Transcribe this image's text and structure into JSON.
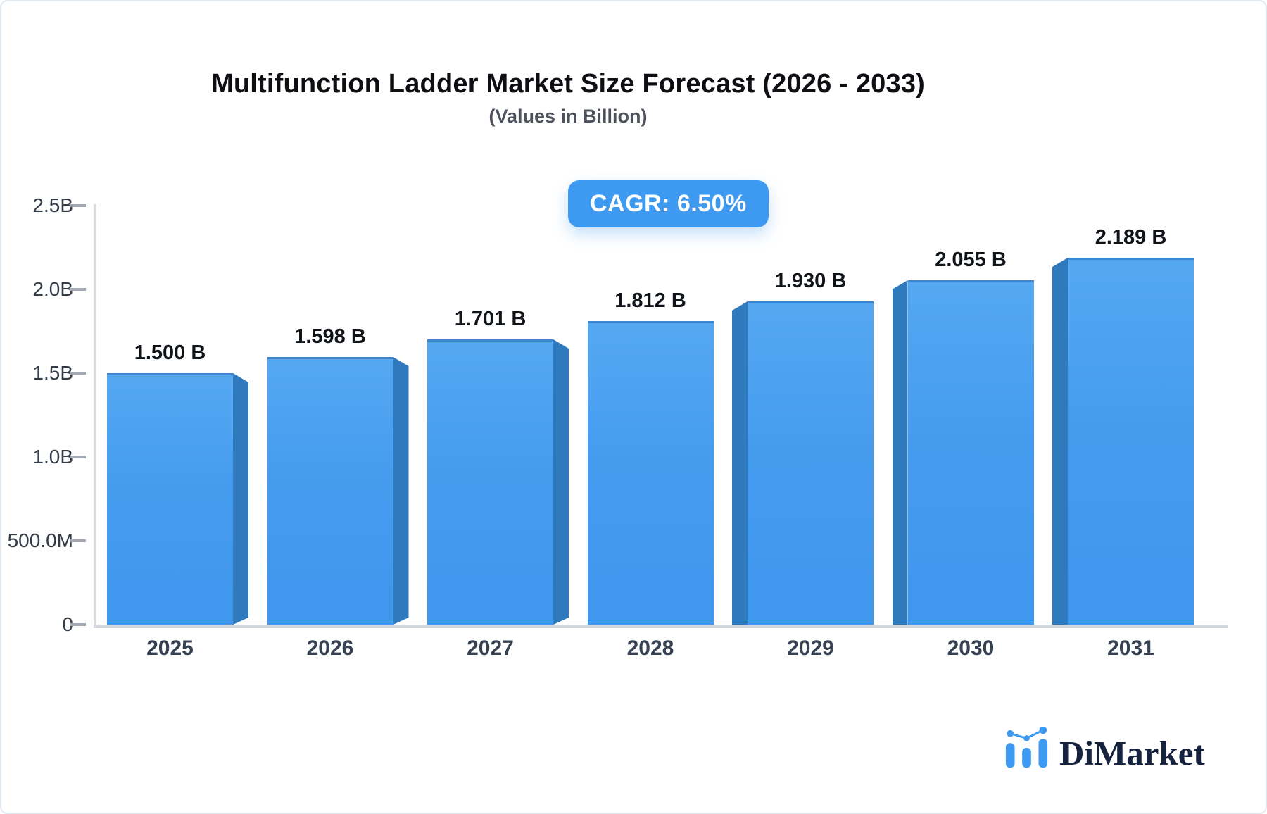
{
  "header": {
    "title": "Multifunction Ladder Market Size Forecast (2026 - 2033)",
    "subtitle": "(Values in Billion)",
    "cagr_label": "CAGR: 6.50%"
  },
  "chart_data": {
    "type": "bar",
    "title": "Multifunction Ladder Market Size Forecast (2026 - 2033)",
    "subtitle": "(Values in Billion)",
    "annotation": "CAGR: 6.50%",
    "categories": [
      "2025",
      "2026",
      "2027",
      "2028",
      "2029",
      "2030",
      "2031"
    ],
    "values": [
      1.5,
      1.598,
      1.701,
      1.812,
      1.93,
      2.055,
      2.189
    ],
    "value_labels": [
      "1.500 B",
      "1.598 B",
      "1.701 B",
      "1.812 B",
      "1.930 B",
      "2.055 B",
      "2.189 B"
    ],
    "unit": "Billion",
    "xlabel": "",
    "ylabel": "",
    "ylim": [
      0,
      2.5
    ],
    "grid": false,
    "legend": "none",
    "y_axis_ticks": [
      {
        "label": "2.5B",
        "value": 2.5
      },
      {
        "label": "2.0B",
        "value": 2.0
      },
      {
        "label": "1.5B",
        "value": 1.5
      },
      {
        "label": "1.0B",
        "value": 1.0
      },
      {
        "label": "500.0M",
        "value": 0.5
      },
      {
        "label": "0",
        "value": 0
      }
    ]
  },
  "footer": {
    "brand_name": "DiMarket",
    "brand_icon": "bar-chart-logo-icon"
  },
  "colors": {
    "bar_face_top": "#55a7f1",
    "bar_face_bottom": "#3f97ee",
    "bar_top_edge": "#3d87d2",
    "bar_bevel": "#2f7abd",
    "badge_bg": "#3e9af0",
    "badge_text": "#ffffff",
    "axis_line": "#d9dcdf",
    "tick_text": "#333c48",
    "category_text": "#364152",
    "title_text": "#0d0f13",
    "subtitle_text": "#4d525c",
    "brand_text": "#16233f",
    "brand_icon_blue": "#3e9af0"
  }
}
